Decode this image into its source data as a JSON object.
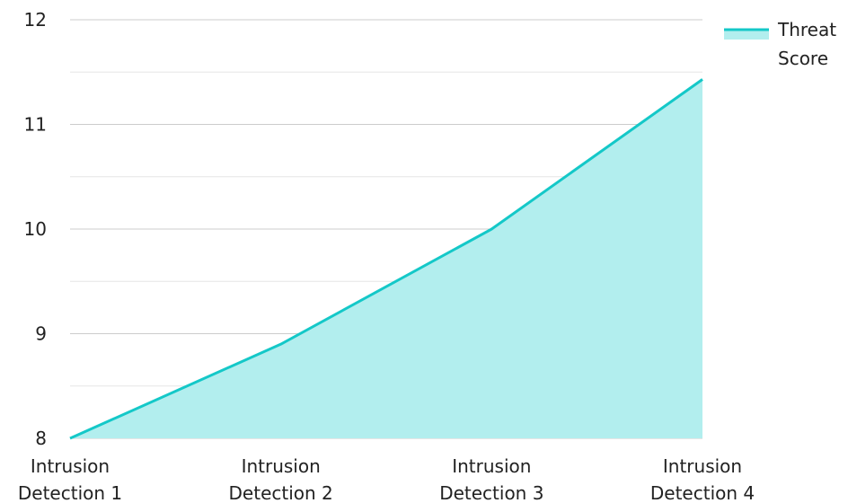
{
  "chart_data": {
    "type": "area",
    "categories": [
      "Intrusion\nDetection 1",
      "Intrusion\nDetection 2",
      "Intrusion\nDetection 3",
      "Intrusion\nDetection 4"
    ],
    "series": [
      {
        "name": "Threat Score",
        "values": [
          8.0,
          8.9,
          10.0,
          11.43
        ]
      }
    ],
    "y_ticks": [
      "8",
      "9",
      "10",
      "11",
      "12"
    ],
    "ylim": [
      8,
      12
    ],
    "grid": true,
    "legend": {
      "placement": "top-right",
      "label_lines": [
        "Threat",
        "Score"
      ]
    },
    "colors": {
      "line": "#14c8c8",
      "fill": "#b2eeee",
      "grid": "#cccccc",
      "grid_minor": "#e6e6e6",
      "text": "#222222"
    }
  }
}
